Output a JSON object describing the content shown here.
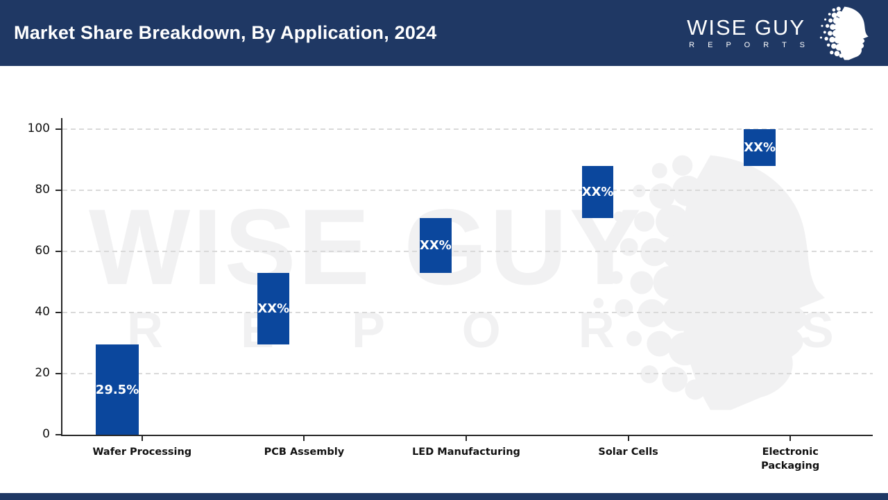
{
  "header": {
    "title": "Market Share Breakdown, By Application, 2024",
    "logo": {
      "line1": "WISE GUY",
      "line2": "R E P O R T S"
    }
  },
  "watermark": {
    "line1": "WISE GUY",
    "line2": "R E P O R T S"
  },
  "chart_data": {
    "type": "bar",
    "subtype": "waterfall",
    "title": "Market Share Breakdown, By Application, 2024",
    "xlabel": "",
    "ylabel": "",
    "categories": [
      "Wafer Processing",
      "PCB Assembly",
      "LED Manufacturing",
      "Solar Cells",
      "Electronic Packaging"
    ],
    "bars": [
      {
        "category": "Wafer Processing",
        "start": 0,
        "end": 29.5,
        "label": "29.5%"
      },
      {
        "category": "PCB Assembly",
        "start": 29.5,
        "end": 53,
        "label": "XX%"
      },
      {
        "category": "LED Manufacturing",
        "start": 53,
        "end": 71,
        "label": "XX%"
      },
      {
        "category": "Solar Cells",
        "start": 71,
        "end": 88,
        "label": "XX%"
      },
      {
        "category": "Electronic Packaging",
        "start": 88,
        "end": 100,
        "label": "XX%"
      }
    ],
    "ylim": [
      0,
      100
    ],
    "yticks": [
      0,
      20,
      40,
      60,
      80,
      100
    ],
    "grid": "horizontal-dashed",
    "legend": "none",
    "bar_color": "#0b479d",
    "bar_label_color": "#ffffff"
  },
  "colors": {
    "header_background": "#1f3864",
    "footer_background": "#1f3864",
    "bar_fill": "#0b479d",
    "bar_label": "#ffffff",
    "axis": "#262626",
    "gridline": "#d9d9d9",
    "tick_label": "#111111",
    "title_text": "#ffffff",
    "watermark": "#f1f1f2"
  }
}
